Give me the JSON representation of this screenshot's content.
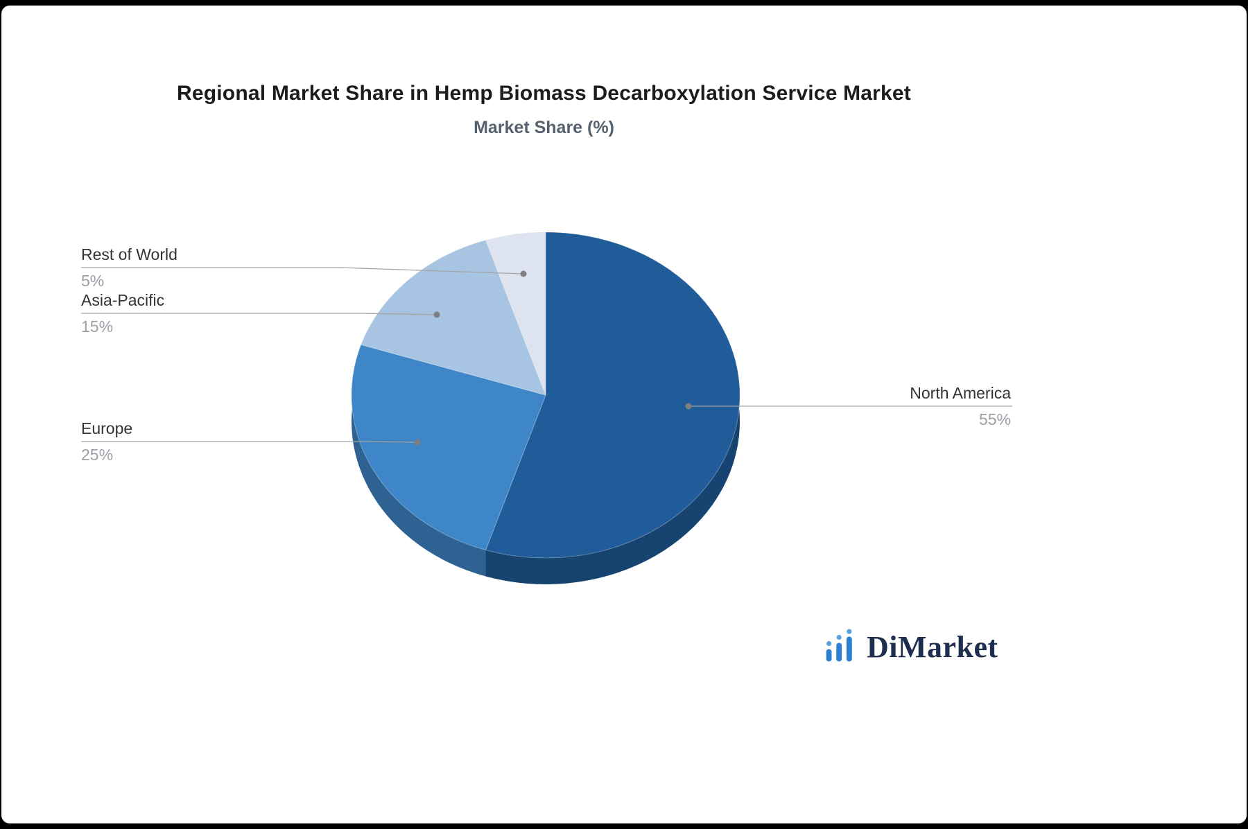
{
  "page": {
    "title": "Regional Market Share in Hemp Biomass Decarboxylation Service Market",
    "subtitle": "Market Share (%)"
  },
  "logo": {
    "text": "DiMarket",
    "icon": "bar-chart-with-dots",
    "accent_color": "#2e7fd0"
  },
  "chart_data": {
    "type": "pie",
    "title": "Regional Market Share in Hemp Biomass Decarboxylation Service Market",
    "subtitle": "Market Share (%)",
    "unit": "%",
    "effect": "3d",
    "start_angle_deg": 0,
    "direction": "clockwise",
    "legend_position": "none",
    "slices": [
      {
        "label": "North America",
        "value": 55,
        "display": "55%",
        "color": "#1f5c99"
      },
      {
        "label": "Europe",
        "value": 25,
        "display": "25%",
        "color": "#3e86c8"
      },
      {
        "label": "Asia-Pacific",
        "value": 15,
        "display": "15%",
        "color": "#a7c4e2"
      },
      {
        "label": "Rest of World",
        "value": 5,
        "display": "5%",
        "color": "#dde4ef"
      }
    ]
  }
}
